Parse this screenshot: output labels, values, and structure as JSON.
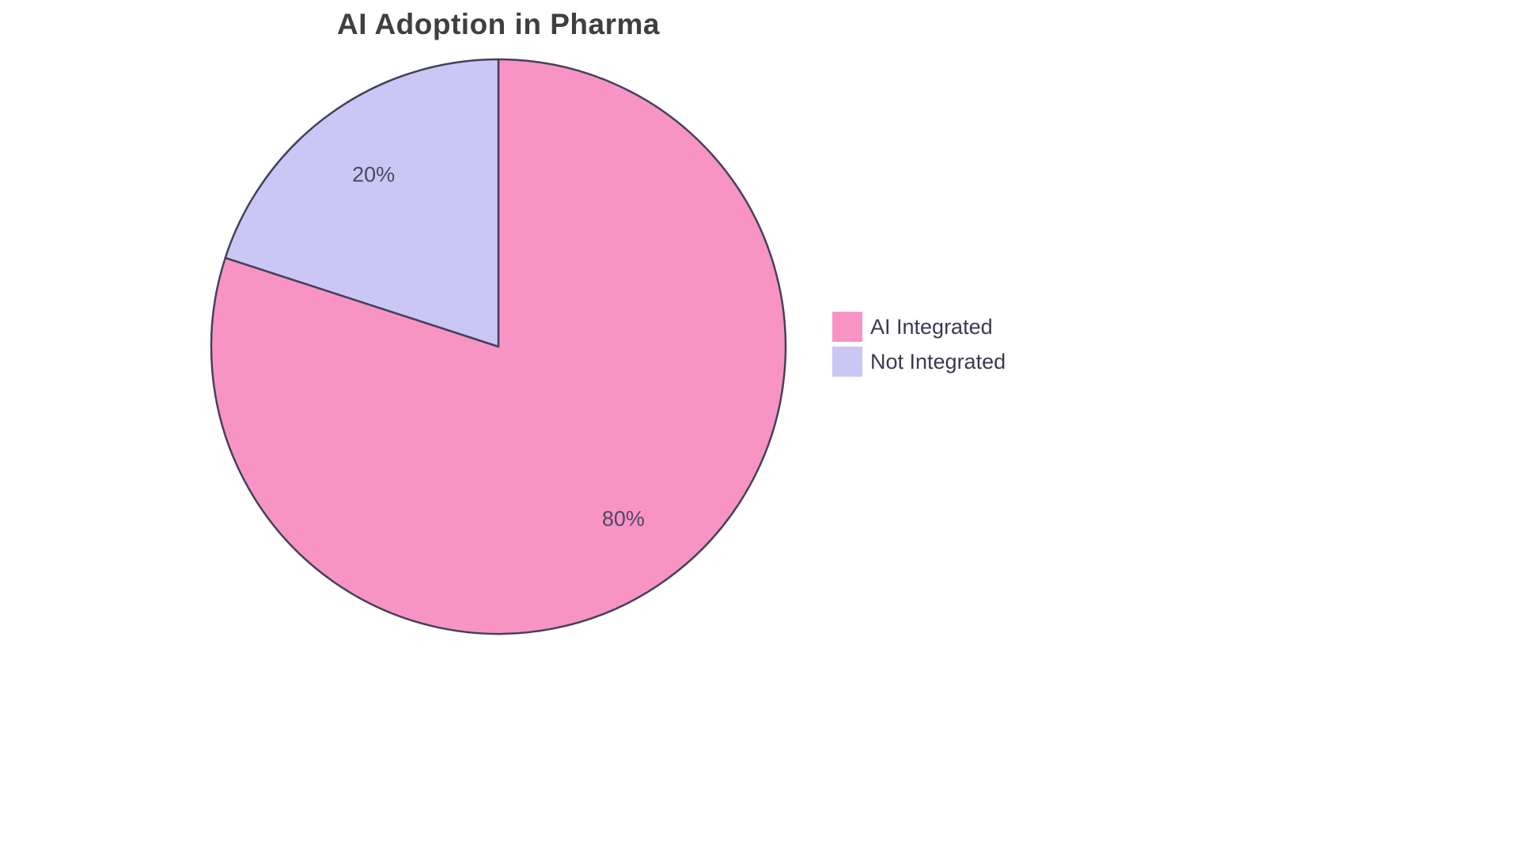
{
  "chart_data": {
    "type": "pie",
    "title": "AI Adoption in Pharma",
    "slices": [
      {
        "label": "AI Integrated",
        "value": 80,
        "percent_label": "80%",
        "color": "#F894C4"
      },
      {
        "label": "Not Integrated",
        "value": 20,
        "percent_label": "20%",
        "color": "#CAC7F5"
      }
    ],
    "start_angle": "top",
    "direction": "clockwise",
    "outline_color": "#45415C",
    "slice_label_color": "#4c4960",
    "legend_position": "right",
    "background": "#ffffff"
  }
}
